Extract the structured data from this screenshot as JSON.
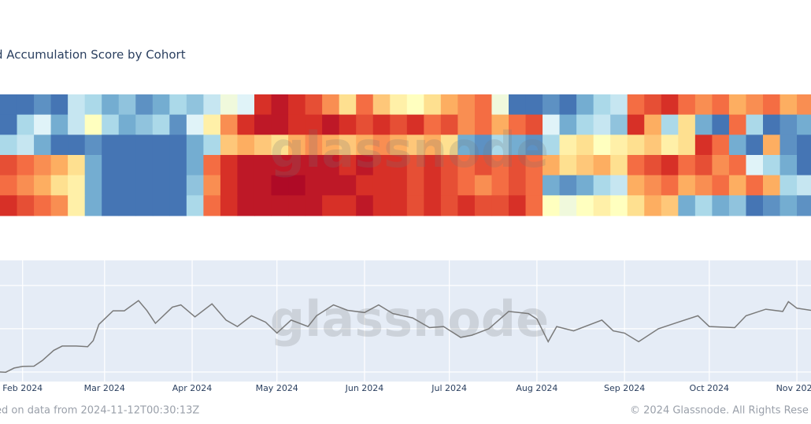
{
  "chart_data": [
    {
      "type": "heatmap",
      "title": "d Accumulation Score by Cohort",
      "x": [
        23,
        29,
        35,
        41,
        47,
        53,
        59,
        65,
        71,
        77,
        83,
        89,
        95,
        101,
        107,
        113,
        119,
        125,
        131,
        137,
        143,
        149,
        155,
        161,
        167,
        173,
        179,
        185,
        191,
        197,
        203,
        209,
        215,
        221,
        227,
        233,
        239,
        245,
        251,
        257,
        263,
        269,
        275,
        281,
        287,
        293,
        299,
        305
      ],
      "xlim": [
        23,
        310
      ],
      "zlim": [
        0,
        1
      ],
      "colorscale": [
        "#313695",
        "#4575b4",
        "#74add1",
        "#abd9e9",
        "#e0f3f8",
        "#ffffbf",
        "#fee090",
        "#fdae61",
        "#f46d43",
        "#d73027",
        "#a50026"
      ],
      "z": [
        [
          0.1,
          0.1,
          0.15,
          0.1,
          0.35,
          0.3,
          0.2,
          0.25,
          0.15,
          0.2,
          0.3,
          0.25,
          0.35,
          0.45,
          0.4,
          0.9,
          0.95,
          0.9,
          0.85,
          0.75,
          0.6,
          0.8,
          0.65,
          0.55,
          0.5,
          0.6,
          0.7,
          0.75,
          0.8,
          0.45,
          0.1,
          0.1,
          0.15,
          0.1,
          0.2,
          0.3,
          0.35,
          0.8,
          0.85,
          0.9,
          0.8,
          0.75,
          0.8,
          0.7,
          0.75,
          0.8,
          0.7,
          0.75
        ],
        [
          0.1,
          0.3,
          0.4,
          0.2,
          0.35,
          0.5,
          0.3,
          0.2,
          0.25,
          0.3,
          0.15,
          0.4,
          0.55,
          0.75,
          0.9,
          0.95,
          0.95,
          0.9,
          0.9,
          0.95,
          0.9,
          0.85,
          0.9,
          0.85,
          0.9,
          0.8,
          0.85,
          0.75,
          0.8,
          0.7,
          0.8,
          0.85,
          0.4,
          0.2,
          0.3,
          0.35,
          0.25,
          0.9,
          0.7,
          0.3,
          0.6,
          0.2,
          0.1,
          0.8,
          0.3,
          0.1,
          0.15,
          0.2
        ],
        [
          0.3,
          0.35,
          0.2,
          0.1,
          0.1,
          0.15,
          0.1,
          0.1,
          0.1,
          0.1,
          0.1,
          0.2,
          0.3,
          0.65,
          0.7,
          0.65,
          0.6,
          0.7,
          0.75,
          0.7,
          0.65,
          0.7,
          0.75,
          0.7,
          0.65,
          0.7,
          0.6,
          0.2,
          0.15,
          0.3,
          0.2,
          0.15,
          0.3,
          0.55,
          0.6,
          0.5,
          0.55,
          0.6,
          0.65,
          0.55,
          0.6,
          0.9,
          0.8,
          0.2,
          0.1,
          0.7,
          0.15,
          0.1
        ],
        [
          0.85,
          0.8,
          0.75,
          0.7,
          0.6,
          0.2,
          0.1,
          0.1,
          0.1,
          0.1,
          0.1,
          0.2,
          0.8,
          0.9,
          0.95,
          0.95,
          0.95,
          0.95,
          0.95,
          0.95,
          0.9,
          0.95,
          0.9,
          0.9,
          0.85,
          0.9,
          0.85,
          0.8,
          0.85,
          0.8,
          0.85,
          0.8,
          0.7,
          0.6,
          0.65,
          0.7,
          0.6,
          0.8,
          0.85,
          0.9,
          0.8,
          0.85,
          0.75,
          0.8,
          0.4,
          0.3,
          0.2,
          0.1
        ],
        [
          0.8,
          0.75,
          0.7,
          0.6,
          0.55,
          0.2,
          0.1,
          0.1,
          0.1,
          0.1,
          0.1,
          0.25,
          0.75,
          0.9,
          0.95,
          0.95,
          0.98,
          0.98,
          0.95,
          0.95,
          0.95,
          0.9,
          0.9,
          0.9,
          0.85,
          0.9,
          0.85,
          0.8,
          0.75,
          0.8,
          0.85,
          0.8,
          0.2,
          0.15,
          0.2,
          0.3,
          0.35,
          0.7,
          0.75,
          0.8,
          0.7,
          0.75,
          0.8,
          0.7,
          0.8,
          0.7,
          0.3,
          0.35
        ],
        [
          0.9,
          0.85,
          0.8,
          0.75,
          0.55,
          0.2,
          0.1,
          0.1,
          0.1,
          0.1,
          0.1,
          0.3,
          0.8,
          0.9,
          0.95,
          0.95,
          0.95,
          0.95,
          0.95,
          0.9,
          0.9,
          0.95,
          0.9,
          0.9,
          0.85,
          0.9,
          0.85,
          0.9,
          0.85,
          0.85,
          0.9,
          0.8,
          0.5,
          0.45,
          0.5,
          0.55,
          0.5,
          0.6,
          0.7,
          0.65,
          0.2,
          0.3,
          0.2,
          0.25,
          0.1,
          0.15,
          0.2,
          0.15
        ]
      ]
    },
    {
      "type": "line",
      "color": "#7a7a7a",
      "background": "#e5ecf6",
      "grid": true,
      "x": [
        23,
        25,
        28,
        31,
        35,
        38,
        42,
        45,
        50,
        54,
        56,
        58,
        63,
        67,
        72,
        75,
        78,
        84,
        87,
        92,
        98,
        103,
        107,
        112,
        117,
        121,
        126,
        132,
        135,
        141,
        146,
        152,
        157,
        162,
        169,
        175,
        180,
        186,
        190,
        196,
        203,
        210,
        213,
        217,
        220,
        226,
        236,
        240,
        244,
        249,
        256,
        263,
        270,
        274,
        283,
        287,
        294,
        300,
        302,
        305,
        310
      ],
      "values": [
        40000,
        39900,
        41800,
        42600,
        42700,
        45300,
        50000,
        52000,
        52000,
        51700,
        54500,
        62000,
        68300,
        68300,
        73000,
        68400,
        62500,
        70000,
        71000,
        65500,
        71500,
        64000,
        61000,
        66000,
        63000,
        58000,
        64000,
        61000,
        66000,
        71000,
        68500,
        67500,
        71000,
        67000,
        65000,
        60500,
        61000,
        56000,
        57000,
        60000,
        68000,
        67000,
        64500,
        54000,
        61000,
        59000,
        64000,
        59000,
        58000,
        54000,
        60000,
        63000,
        66000,
        61000,
        60500,
        66000,
        69000,
        68000,
        72500,
        69500,
        68500
      ],
      "xlim": [
        23,
        310
      ],
      "ylim": [
        35600,
        91600
      ],
      "ygrid": [
        40000,
        60000,
        80000
      ],
      "xticks": [
        {
          "value": 31,
          "label": "Feb 2024"
        },
        {
          "value": 60,
          "label": "Mar 2024"
        },
        {
          "value": 91,
          "label": "Apr 2024"
        },
        {
          "value": 121,
          "label": "May 2024"
        },
        {
          "value": 152,
          "label": "Jun 2024"
        },
        {
          "value": 182,
          "label": "Jul 2024"
        },
        {
          "value": 213,
          "label": "Aug 2024"
        },
        {
          "value": 244,
          "label": "Sep 2024"
        },
        {
          "value": 274,
          "label": "Oct 2024"
        },
        {
          "value": 305,
          "label": "Nov 2024"
        }
      ]
    }
  ],
  "watermark": "glassnode",
  "footer": {
    "left": "ed on data from 2024-11-12T00:30:13Z",
    "right": "© 2024 Glassnode. All Rights Rese"
  }
}
